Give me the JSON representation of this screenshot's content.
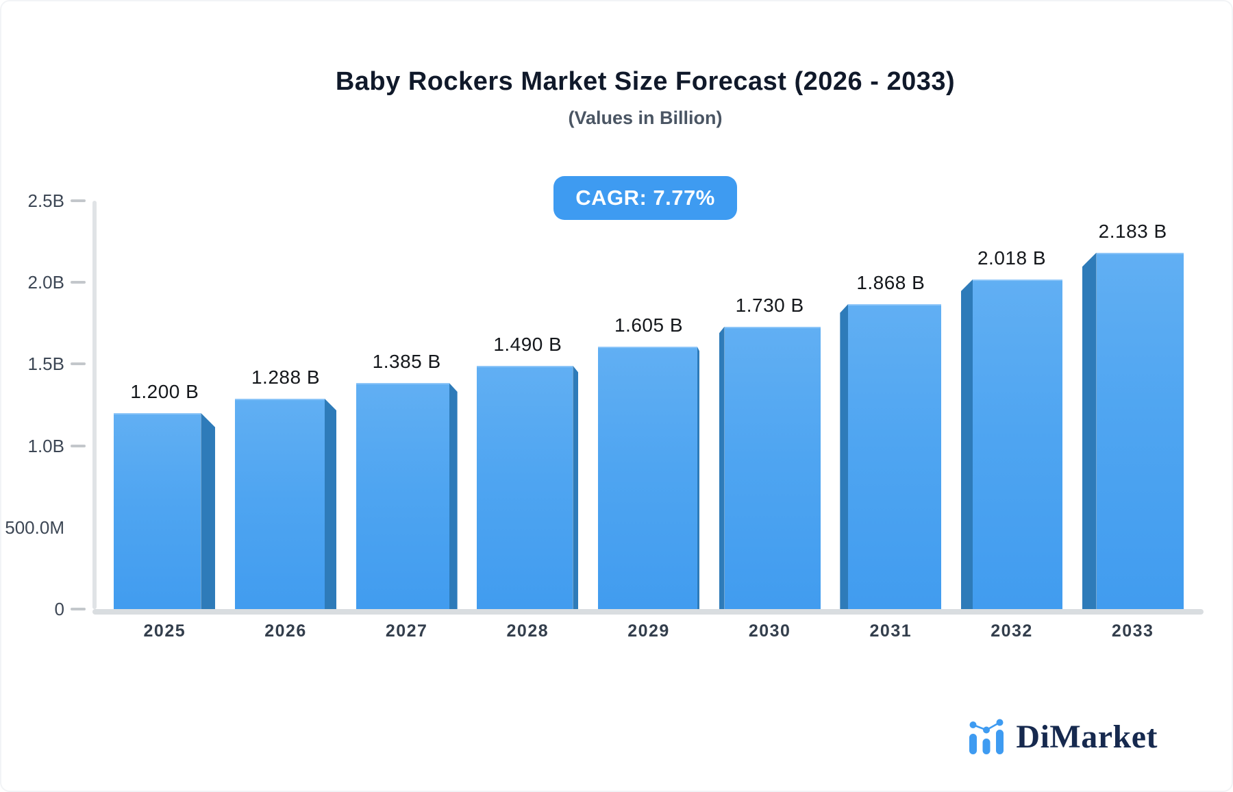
{
  "header": {
    "title": "Baby Rockers Market Size Forecast (2026 - 2033)",
    "subtitle": "(Values in Billion)"
  },
  "badge": {
    "label": "CAGR: 7.77%",
    "background": "#3e9bf1",
    "text_color": "#ffffff"
  },
  "logo": {
    "text": "DiMarket",
    "icon": "bar-chart-logo-icon",
    "icon_color": "#3e9bf1",
    "text_color": "#16294e"
  },
  "chart_data": {
    "type": "bar",
    "title": "Baby Rockers Market Size Forecast (2026 - 2033)",
    "subtitle": "(Values in Billion)",
    "categories": [
      "2025",
      "2026",
      "2027",
      "2028",
      "2029",
      "2030",
      "2031",
      "2032",
      "2033"
    ],
    "values": [
      1.2,
      1.288,
      1.385,
      1.49,
      1.605,
      1.73,
      1.868,
      2.018,
      2.183
    ],
    "value_labels": [
      "1.200 B",
      "1.288 B",
      "1.385 B",
      "1.490 B",
      "1.605 B",
      "1.730 B",
      "1.868 B",
      "2.018 B",
      "2.183 B"
    ],
    "xlabel": "",
    "ylabel": "",
    "ylim": [
      0,
      2.5
    ],
    "y_ticks": [
      {
        "label": "2.5B",
        "value": 2.5,
        "has_dash": true
      },
      {
        "label": "2.0B",
        "value": 2.0,
        "has_dash": true
      },
      {
        "label": "1.5B",
        "value": 1.5,
        "has_dash": true
      },
      {
        "label": "1.0B",
        "value": 1.0,
        "has_dash": true
      },
      {
        "label": "500.0M",
        "value": 0.5,
        "has_dash": false
      },
      {
        "label": "0",
        "value": 0.0,
        "has_dash": true
      }
    ],
    "grid": false,
    "legend": false,
    "bar_color": "#47a1f0",
    "bar_side_color": "#2e7bb9",
    "bar_top_highlight": "#8cc5f8",
    "style": "3d-perspective-from-center"
  }
}
